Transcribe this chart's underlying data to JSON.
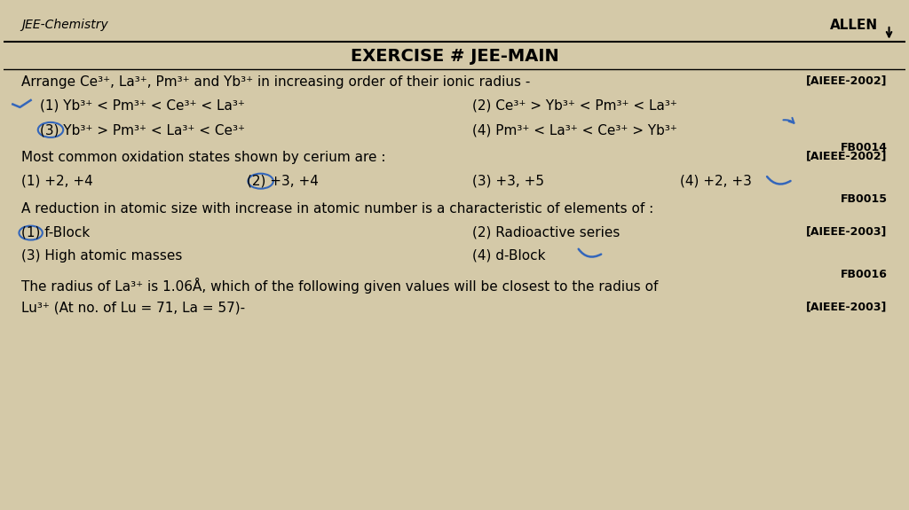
{
  "background_color": "#d4c9a8",
  "title": "EXERCISE # JEE-MAIN",
  "header_left": "JEE-Chemistry",
  "header_right": "ALLEN",
  "title_fontsize": 14,
  "body_fontsize": 11,
  "small_fontsize": 9,
  "q1_text": "Arrange Ce³⁺, La³⁺, Pm³⁺ and Yb³⁺ in increasing order of their ionic radius -",
  "q1_ref": "[AIEEE-2002]",
  "q1_opt1": "(1) Yb³⁺ < Pm³⁺ < Ce³⁺ < La³⁺",
  "q1_opt2": "(2) Ce³⁺ > Yb³⁺ < Pm³⁺ < La³⁺",
  "q1_opt3": "(3) Yb³⁺ > Pm³⁺ < La³⁺ < Ce³⁺",
  "q1_opt4": "(4) Pm³⁺ < La³⁺ < Ce³⁺ > Yb³⁺",
  "fb0014": "FB0014",
  "q2_text": "Most common oxidation states shown by cerium are :",
  "q2_ref": "[AIEEE-2002]",
  "q2_opt1": "(1) +2, +4",
  "q2_opt2": "(2) +3, +4",
  "q2_opt3": "(3) +3, +5",
  "q2_opt4": "(4) +2, +3",
  "fb0015": "FB0015",
  "q3_text": "A reduction in atomic size with increase in atomic number is a characteristic of elements of :",
  "q3_opt1": "(1) f-Block",
  "q3_opt2": "(2) Radioactive series",
  "q3_ref": "[AIEEE-2003]",
  "q3_opt3": "(3) High atomic masses",
  "q3_opt4": "(4) d-Block",
  "fb0016": "FB0016",
  "q4_text": "The radius of La³⁺ is 1.06Å, which of the following given values will be closest to the radius of",
  "q4_text2": "Lu³⁺ (At no. of Lu = 71, La = 57)-",
  "q4_ref": "[AIEEE-2003]"
}
